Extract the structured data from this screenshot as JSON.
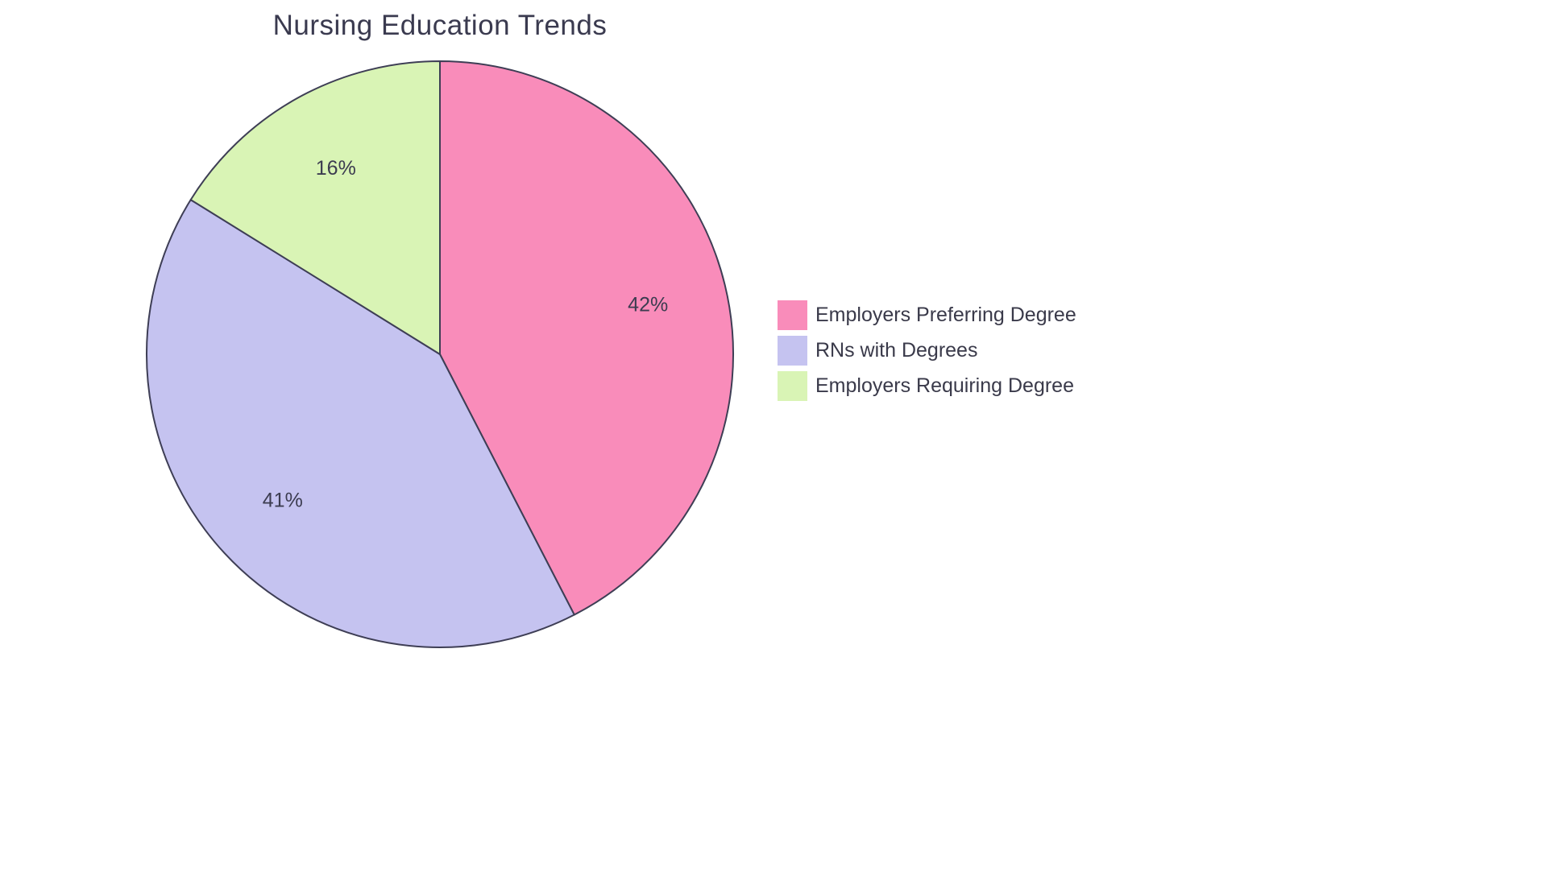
{
  "chart_data": {
    "type": "pie",
    "title": "Nursing Education Trends",
    "categories": [
      "Employers Preferring Degree",
      "RNs with Degrees",
      "Employers Requiring Degree"
    ],
    "values": [
      42,
      41,
      16
    ],
    "percent_labels": [
      "42%",
      "41%",
      "16%"
    ],
    "colors": [
      "#f98cba",
      "#c5c3f0",
      "#d9f4b5"
    ],
    "slice_stroke_color": "#3e3e55",
    "start_angle_deg": 0,
    "direction": "clockwise",
    "legend_position": "right",
    "legend": [
      {
        "label": "Employers Preferring Degree",
        "color": "#f98cba"
      },
      {
        "label": "RNs with Degrees",
        "color": "#c5c3f0"
      },
      {
        "label": "Employers Requiring Degree",
        "color": "#d9f4b5"
      }
    ]
  }
}
